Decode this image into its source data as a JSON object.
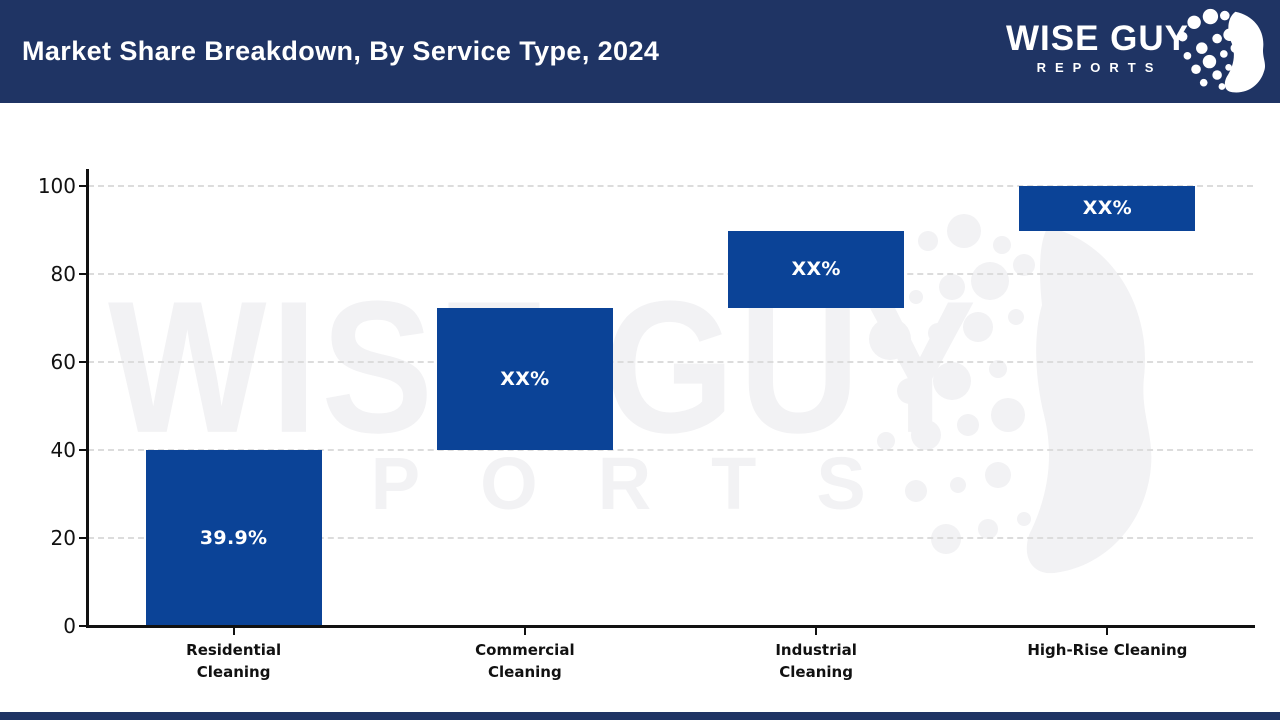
{
  "header": {
    "title": "Market Share Breakdown, By Service Type, 2024",
    "logo": {
      "line1": "WISE GUY",
      "line2": "REPORTS"
    }
  },
  "watermark": {
    "line1": "WISE GUY",
    "line2": "REPORTS"
  },
  "chart_data": {
    "type": "bar",
    "subtype": "waterfall",
    "title": "Market Share Breakdown, By Service Type, 2024",
    "categories": [
      "Residential\nCleaning",
      "Commercial\nCleaning",
      "Industrial\nCleaning",
      "High-Rise Cleaning"
    ],
    "bars": [
      {
        "category": "Residential Cleaning",
        "start": 0,
        "end": 39.9,
        "segment_value": 39.9,
        "label": "39.9%"
      },
      {
        "category": "Commercial Cleaning",
        "start": 39.9,
        "end": 72.3,
        "segment_value": 32.4,
        "label": "XX%"
      },
      {
        "category": "Industrial Cleaning",
        "start": 72.3,
        "end": 89.8,
        "segment_value": 17.5,
        "label": "XX%"
      },
      {
        "category": "High-Rise Cleaning",
        "start": 89.8,
        "end": 100,
        "segment_value": 10.2,
        "label": "XX%"
      }
    ],
    "ylabel": "",
    "xlabel": "",
    "yticks": [
      0,
      20,
      40,
      60,
      80,
      100
    ],
    "ylim": [
      0,
      105
    ],
    "grid": "horizontal-dashed",
    "legend": "none",
    "bar_color": "#0b4397",
    "bar_label_color": "#ffffff"
  },
  "colors": {
    "header_bg": "#1f3464",
    "footer_bg": "#1f3464",
    "bar": "#0b4397",
    "grid": "#dcdcdc",
    "axis": "#111111",
    "watermark": "#f2f2f4"
  }
}
